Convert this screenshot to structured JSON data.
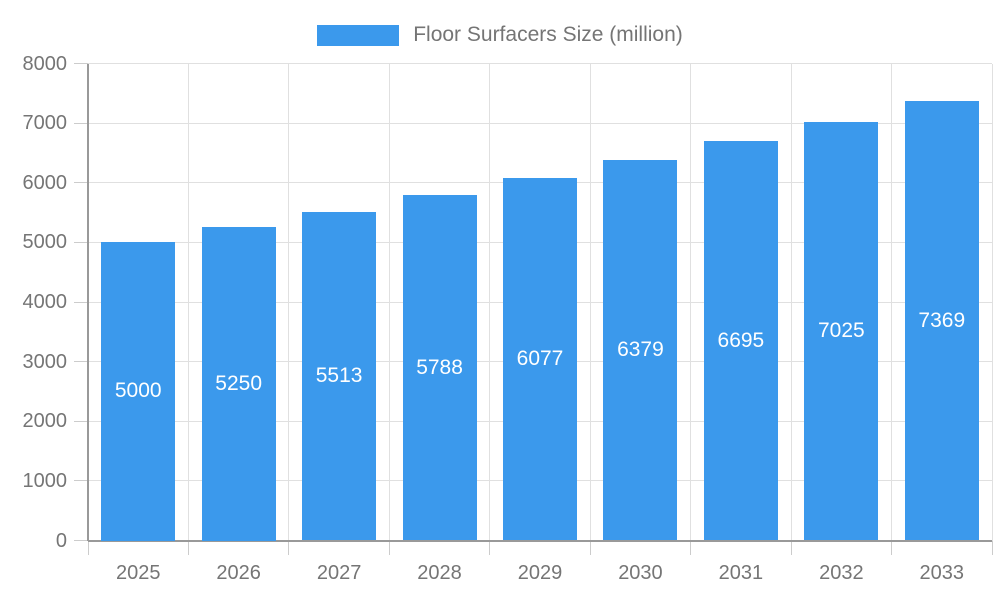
{
  "legend": {
    "label": "Floor Surfacers Size (million)"
  },
  "colors": {
    "bar": "#3b99ec",
    "bar_label": "#ffffff",
    "axis_label": "#757575",
    "legend_text": "#757575",
    "grid": "#e0e0e0",
    "tick": "#cccccc",
    "axis_line": "#999999",
    "background": "#ffffff"
  },
  "chart_data": {
    "type": "bar",
    "title": "Floor Surfacers Size (million)",
    "series_name": "Floor Surfacers Size (million)",
    "categories": [
      "2025",
      "2026",
      "2027",
      "2028",
      "2029",
      "2030",
      "2031",
      "2032",
      "2033"
    ],
    "values": [
      5000,
      5250,
      5513,
      5788,
      6077,
      6379,
      6695,
      7025,
      7369
    ],
    "xlabel": "",
    "ylabel": "",
    "ylim": [
      0,
      8000
    ],
    "yticks": [
      0,
      1000,
      2000,
      3000,
      4000,
      5000,
      6000,
      7000,
      8000
    ],
    "grid": true,
    "legend_position": "top",
    "bar_label_position": "middle"
  }
}
